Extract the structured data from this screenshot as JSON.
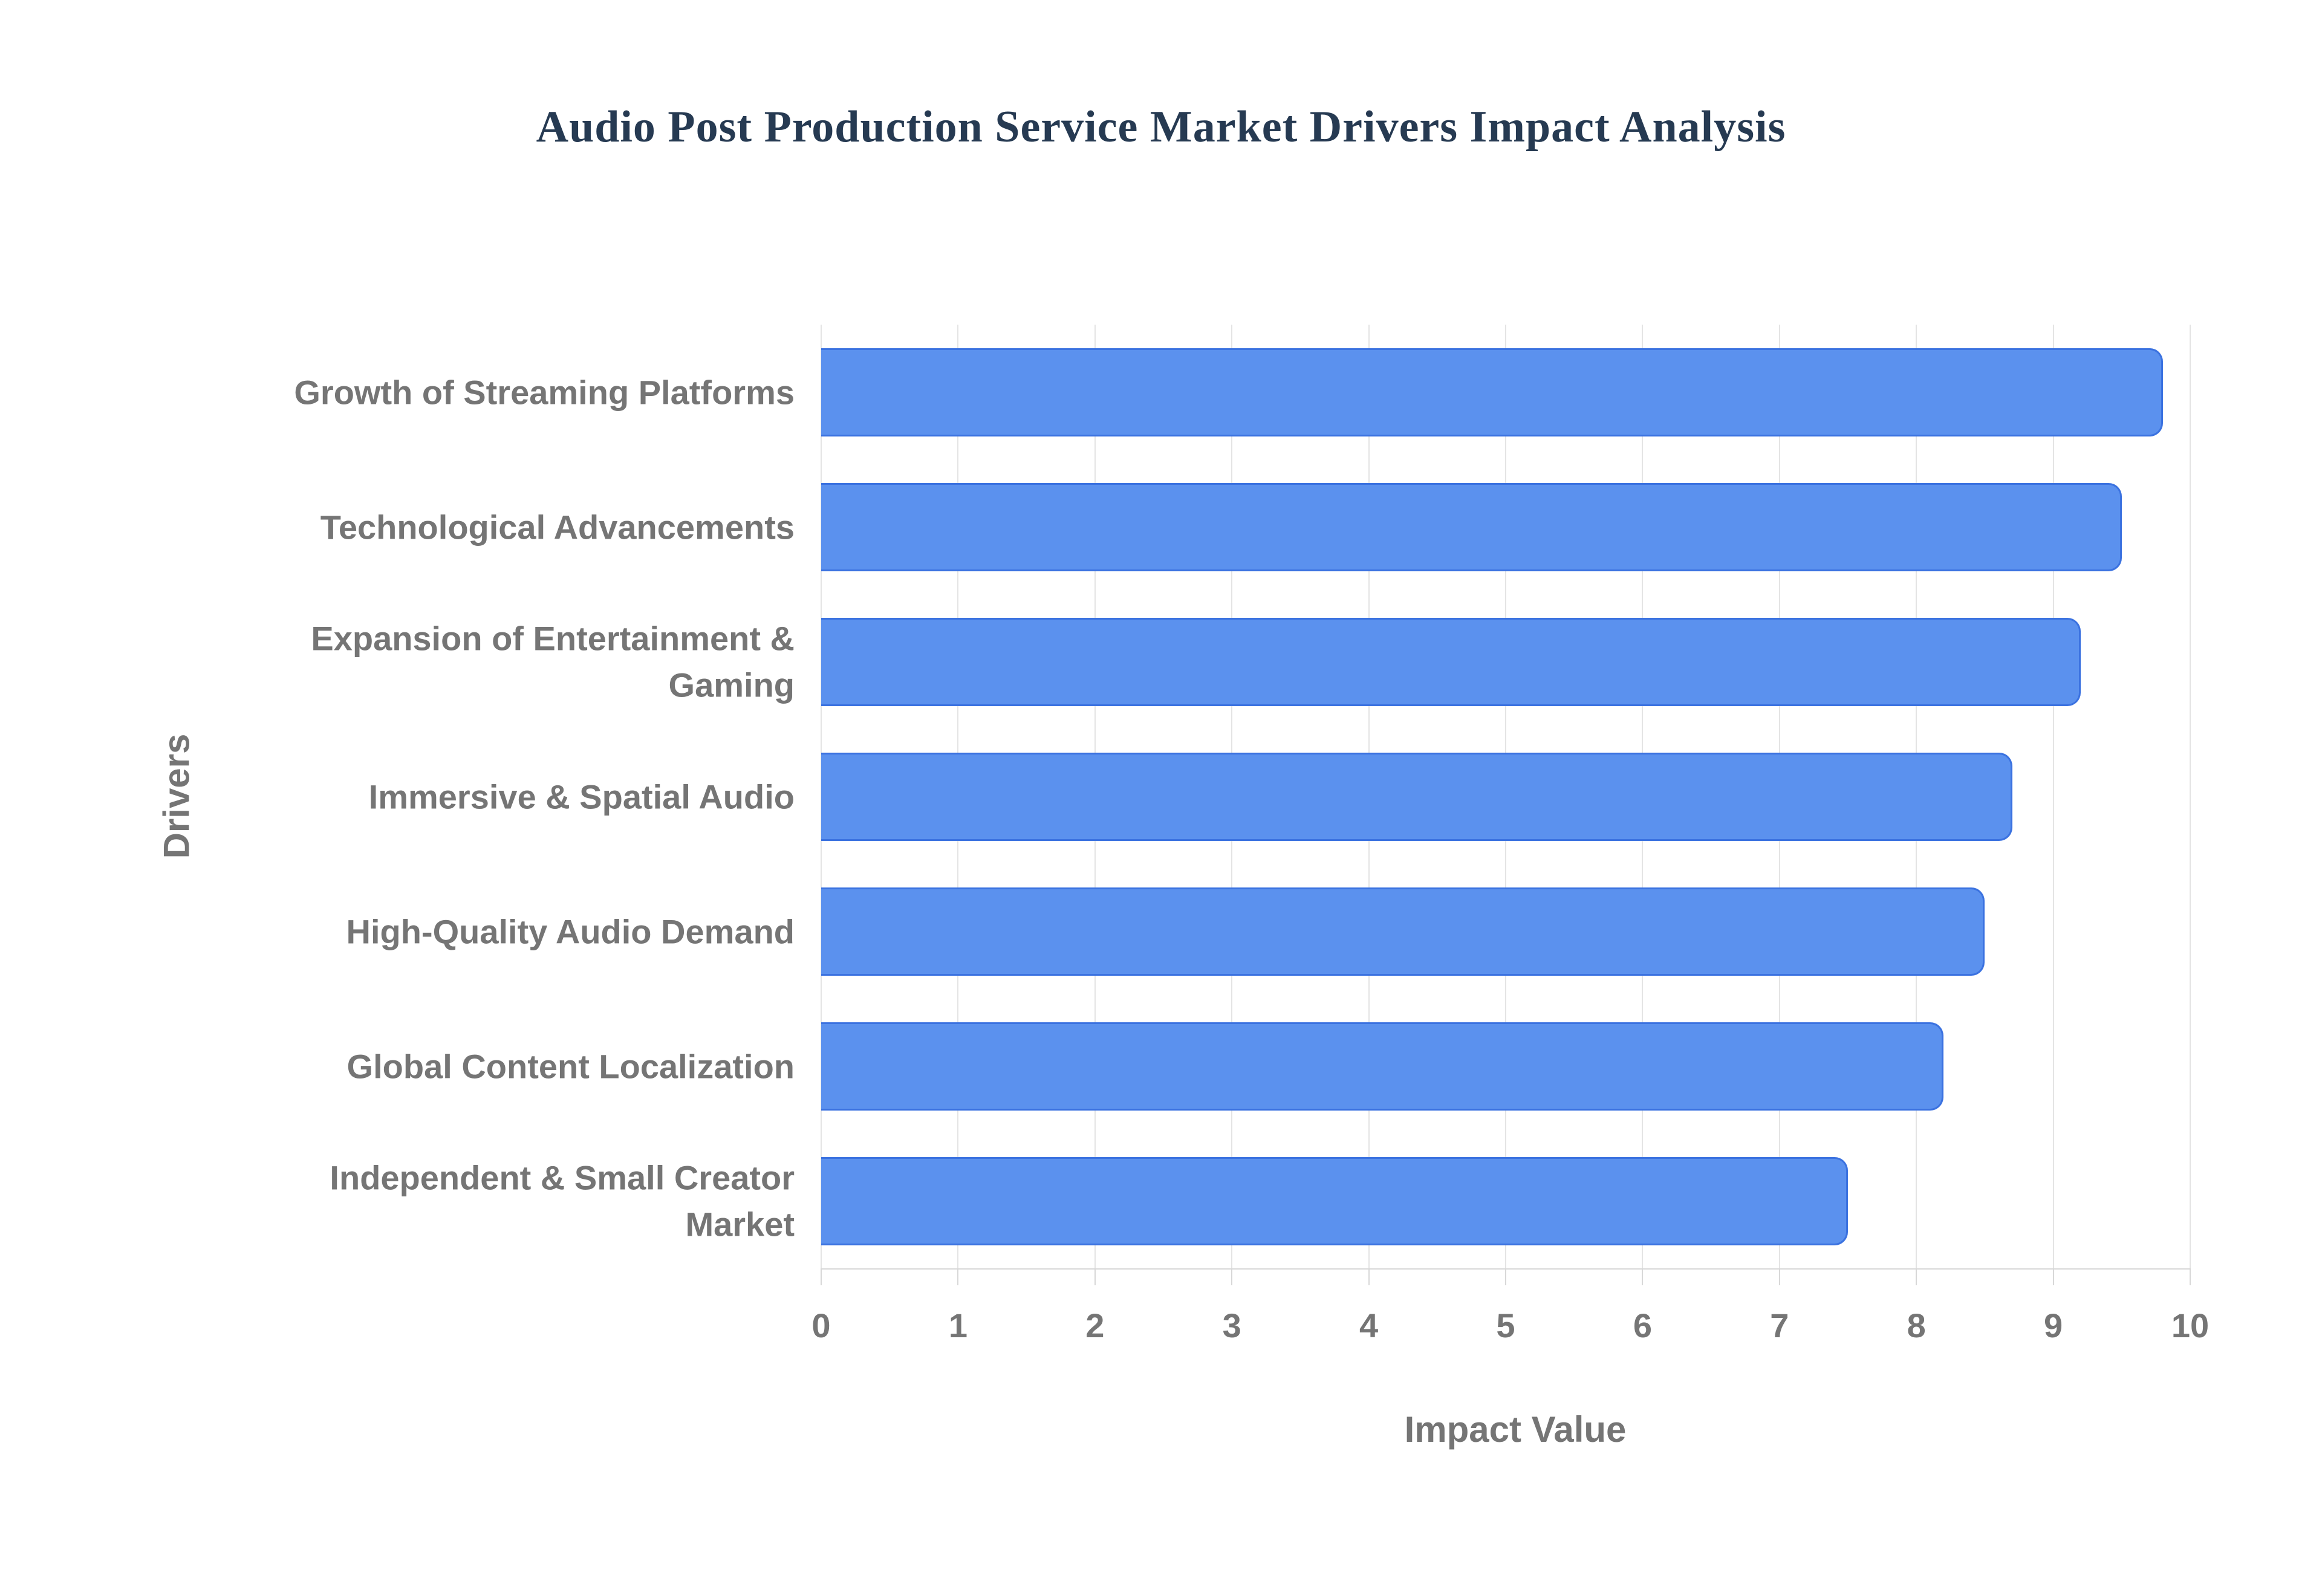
{
  "title": "Audio Post Production Service Market Drivers Impact Analysis",
  "chart_data": {
    "type": "bar",
    "orientation": "horizontal",
    "title": "Audio Post Production Service Market Drivers Impact Analysis",
    "categories": [
      "Growth of Streaming Platforms",
      "Technological Advancements",
      "Expansion of Entertainment & Gaming",
      "Immersive & Spatial Audio",
      "High-Quality Audio Demand",
      "Global Content Localization",
      "Independent & Small Creator Market"
    ],
    "values": [
      9.8,
      9.5,
      9.2,
      8.7,
      8.5,
      8.2,
      7.5
    ],
    "xlabel": "Impact Value",
    "ylabel": "Drivers",
    "xlim": [
      0,
      10
    ],
    "xticks": [
      0,
      1,
      2,
      3,
      4,
      5,
      6,
      7,
      8,
      9,
      10
    ],
    "grid": true,
    "legend": false,
    "colors": {
      "bar_fill": "#5b91ee",
      "bar_border": "#3b72e0",
      "gridline": "#e4e4e4",
      "axis_line": "#d8d8d8",
      "axis_text": "#757575",
      "title_text": "#263a52",
      "background": "#ffffff"
    }
  }
}
